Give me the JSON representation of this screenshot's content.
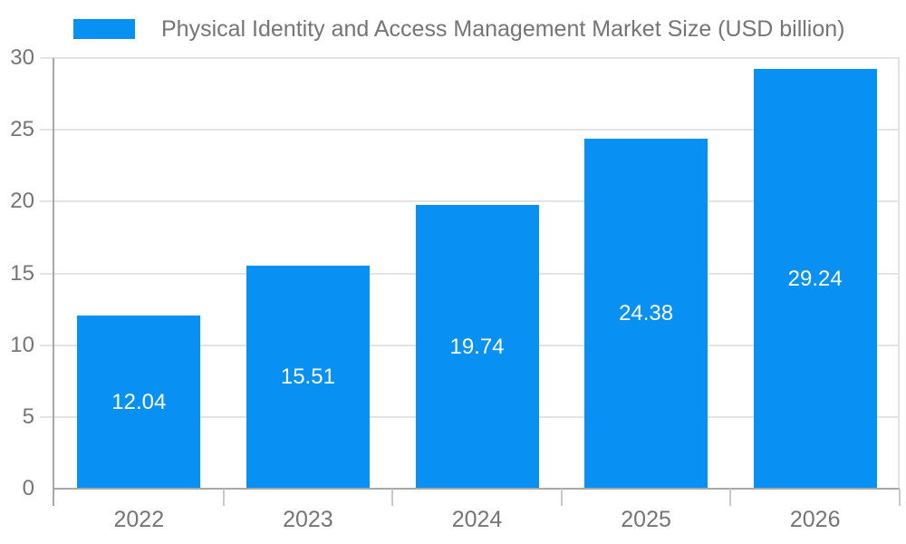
{
  "chart_data": {
    "type": "bar",
    "title": "Physical Identity and Access Management Market Size (USD billion)",
    "categories": [
      "2022",
      "2023",
      "2024",
      "2025",
      "2026"
    ],
    "values": [
      12.04,
      15.51,
      19.74,
      24.38,
      29.24
    ],
    "value_labels": [
      "12.04",
      "15.51",
      "19.74",
      "24.38",
      "29.24"
    ],
    "y_ticks": [
      0,
      5,
      10,
      15,
      20,
      25,
      30
    ],
    "y_tick_labels": [
      "0",
      "5",
      "10",
      "15",
      "20",
      "25",
      "30"
    ],
    "ylim": [
      0,
      30
    ],
    "grid": true,
    "legend_position": "top-left",
    "colors": {
      "bar": "#0890f2",
      "bar_value_text": "#ffffff",
      "axis_text": "#757575",
      "grid_line": "#e4e4e4",
      "axis_line": "#a8a8a8",
      "tick_line": "#c9c9c9",
      "background": "#ffffff"
    }
  }
}
